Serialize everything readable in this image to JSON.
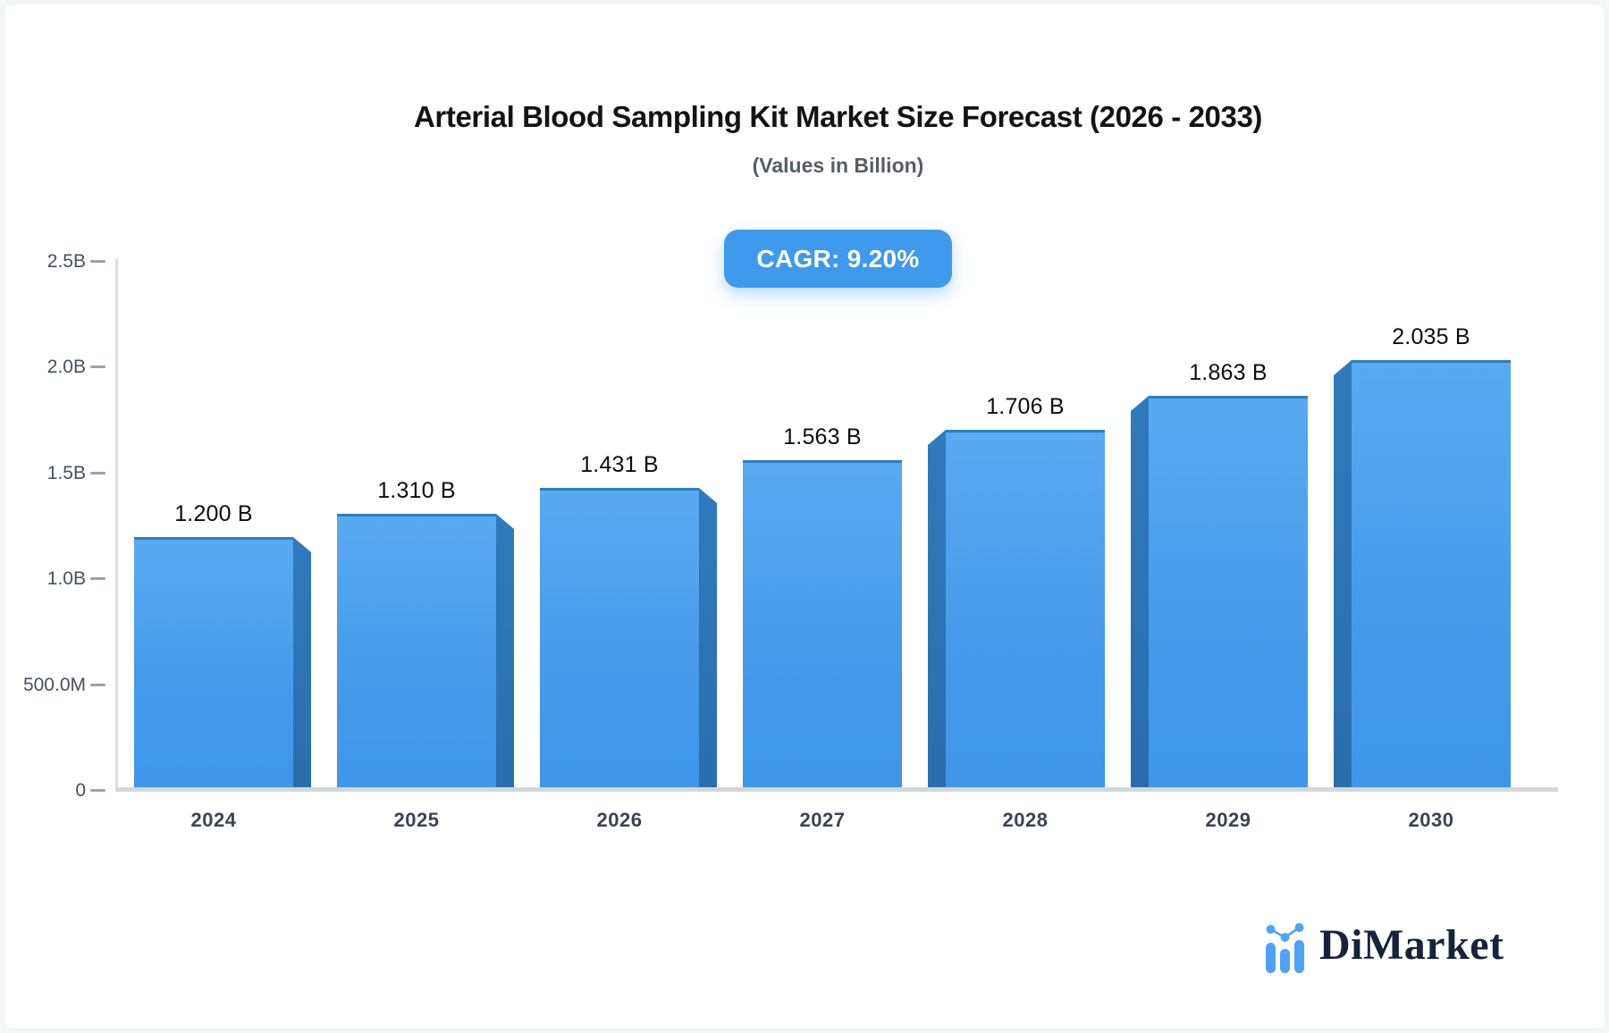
{
  "header": {
    "title": "Arterial Blood Sampling Kit Market Size Forecast (2026 - 2033)",
    "subtitle": "(Values in Billion)",
    "cagr_badge": "CAGR: 9.20%"
  },
  "footer": {
    "brand": "DiMarket"
  },
  "colors": {
    "badge_bg": "#3d9aec",
    "bar_face_top": "#58aaf1",
    "bar_face_bottom": "#3e96e9",
    "bar_side": "#2d74b6",
    "bar_top_cap": "#2e7cc6",
    "axis_line": "#d2d7dc",
    "tick_mark": "#9aa3ae",
    "axis_label": "#46515f",
    "year_label": "#3a4455",
    "value_label": "#0d0d0d",
    "title": "#131313",
    "subtitle": "#565d66",
    "logo_text": "#16233c",
    "logo_icon": "#4da3f5",
    "card_bg": "#ffffff",
    "page_bg": "#f3f5f7"
  },
  "chart_data": {
    "type": "bar",
    "title": "Arterial Blood Sampling Kit Market Size Forecast (2026 - 2033)",
    "subtitle": "(Values in Billion)",
    "cagr": "9.20%",
    "categories": [
      "2024",
      "2025",
      "2026",
      "2027",
      "2028",
      "2029",
      "2030"
    ],
    "values": [
      1.2,
      1.31,
      1.431,
      1.563,
      1.706,
      1.863,
      2.035
    ],
    "bar_labels": [
      "1.200 B",
      "1.310 B",
      "1.431 B",
      "1.563 B",
      "1.706 B",
      "1.863 B",
      "2.035 B"
    ],
    "y_ticks": [
      {
        "label": "0",
        "value": 0
      },
      {
        "label": "500.0M",
        "value": 0.5
      },
      {
        "label": "1.0B",
        "value": 1.0
      },
      {
        "label": "1.5B",
        "value": 1.5
      },
      {
        "label": "2.0B",
        "value": 2.0
      },
      {
        "label": "2.5B",
        "value": 2.5
      }
    ],
    "ylim": [
      0,
      2.5
    ],
    "xlabel": "",
    "ylabel": "",
    "grid": false,
    "legend": false,
    "effect_sides": [
      "right",
      "right",
      "right",
      "none",
      "left",
      "left",
      "left"
    ]
  }
}
